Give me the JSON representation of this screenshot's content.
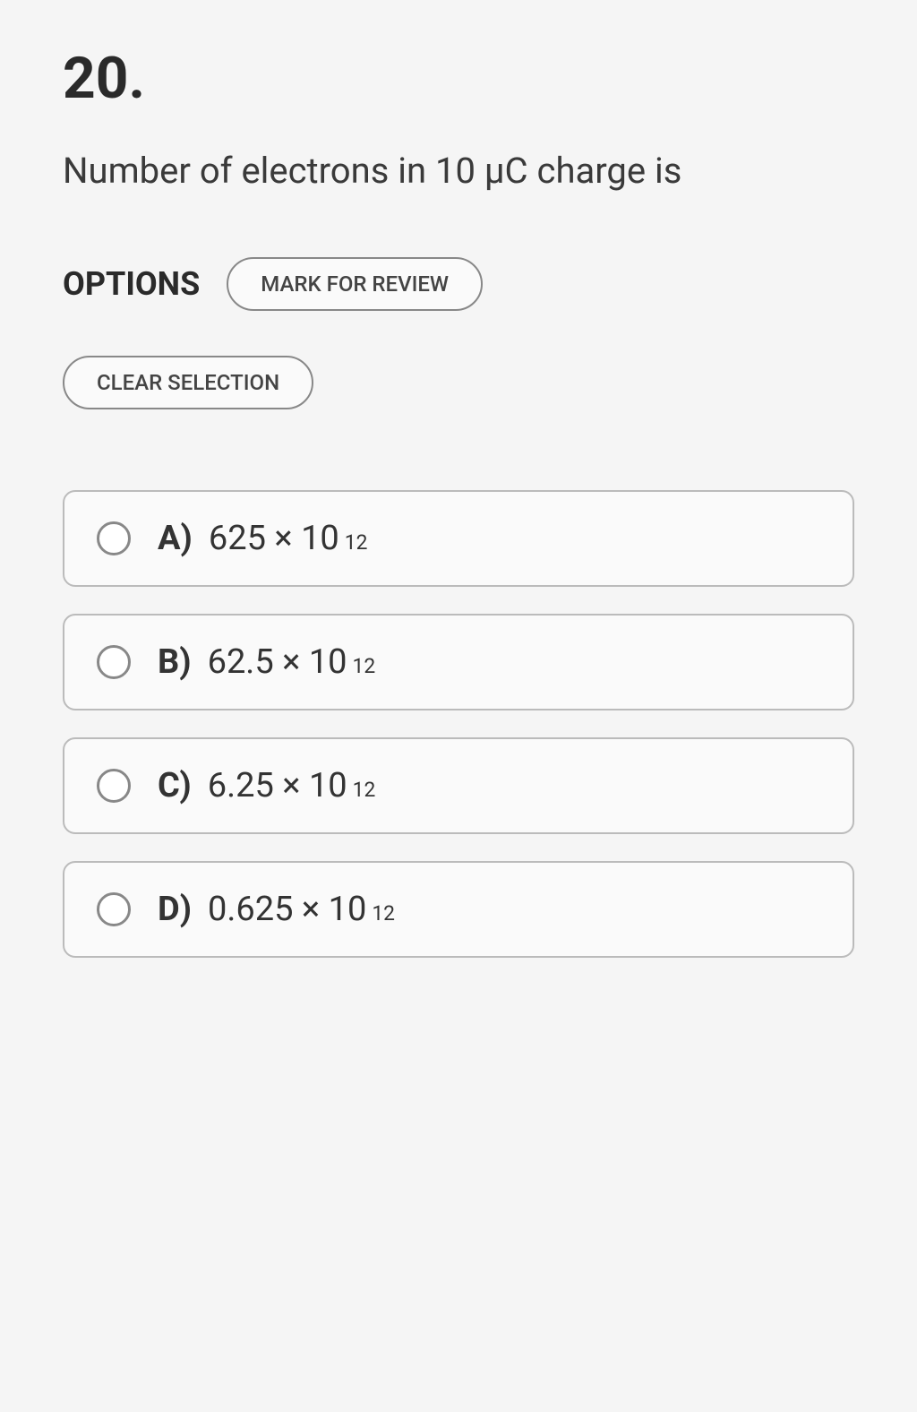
{
  "question": {
    "number": "20.",
    "text": "Number of electrons in 10 μC charge is"
  },
  "labels": {
    "options": "OPTIONS",
    "markForReview": "MARK FOR REVIEW",
    "clearSelection": "CLEAR SELECTION"
  },
  "answers": [
    {
      "letter": "A)",
      "base": "625 × 10",
      "exp": "12"
    },
    {
      "letter": "B)",
      "base": "62.5 × 10",
      "exp": "12"
    },
    {
      "letter": "C)",
      "base": "6.25 × 10",
      "exp": "12"
    },
    {
      "letter": "D)",
      "base": "0.625 × 10",
      "exp": "12"
    }
  ],
  "colors": {
    "background": "#f5f5f5",
    "text": "#333333",
    "border": "#bbbbbb",
    "buttonBorder": "#888888"
  }
}
